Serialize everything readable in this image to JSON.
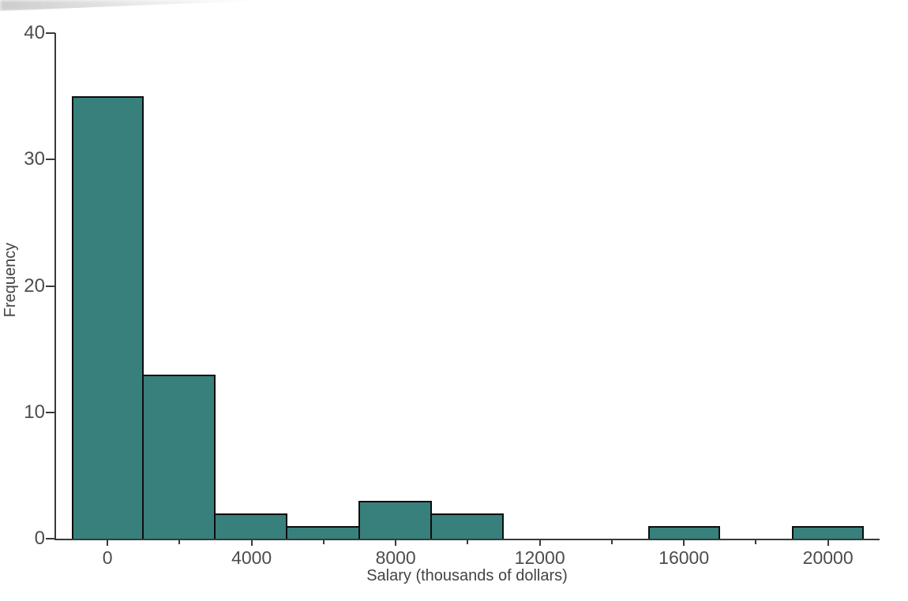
{
  "chart_data": {
    "type": "bar",
    "subtype": "histogram",
    "xlabel": "Salary (thousands of dollars)",
    "ylabel": "Frequency",
    "bin_edges": [
      -1000,
      1000,
      3000,
      5000,
      7000,
      9000,
      11000,
      13000,
      15000,
      17000,
      19000,
      21000
    ],
    "counts": [
      35,
      13,
      2,
      1,
      3,
      2,
      0,
      0,
      1,
      0,
      1
    ],
    "x_major_ticks": [
      0,
      4000,
      8000,
      12000,
      16000,
      20000
    ],
    "x_minor_ticks": [
      2000,
      6000,
      10000,
      14000,
      18000
    ],
    "y_ticks": [
      0,
      10,
      20,
      30,
      40
    ],
    "xlim": [
      -1450,
      21410
    ],
    "ylim": [
      0,
      40
    ],
    "grid": false,
    "legend": "none",
    "colors": {
      "bar_fill": "#37807C",
      "bar_border": "#0d0d0d",
      "axis": "#3a3a3a",
      "tick_label": "#4d4d4d",
      "axis_title": "#434343",
      "background": "#ffffff"
    }
  }
}
